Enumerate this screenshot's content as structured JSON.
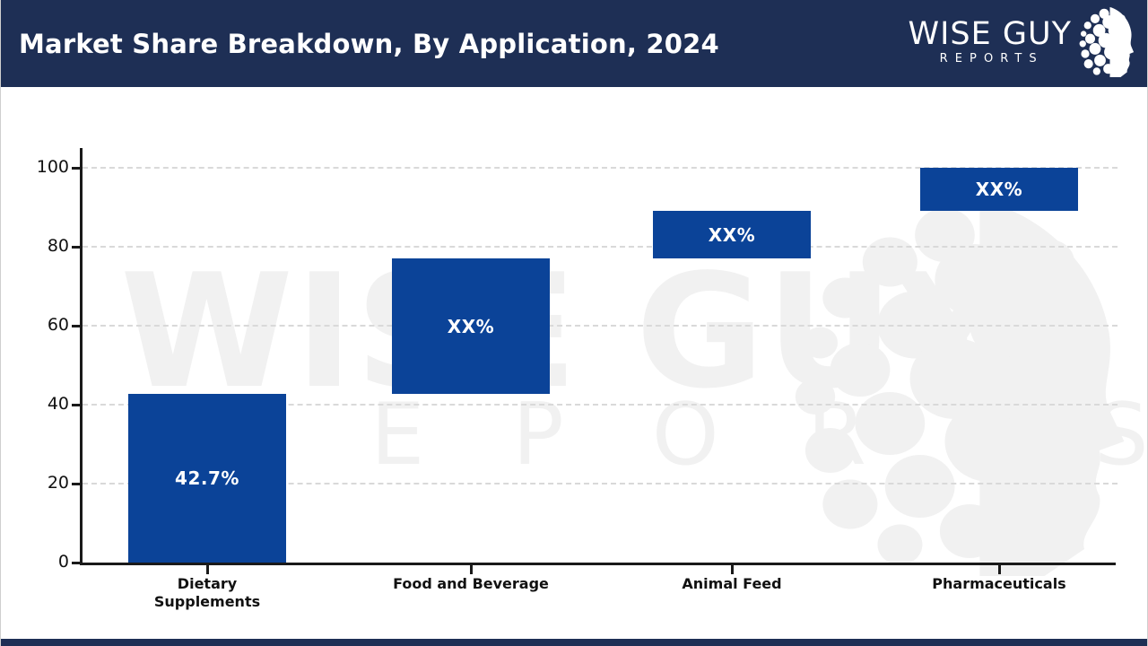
{
  "header": {
    "title": "Market Share Breakdown, By Application, 2024",
    "logo": {
      "name": "WISE GUY",
      "subname": "REPORTS"
    }
  },
  "watermark": {
    "line1": "WISE GUY",
    "line2": "R E P O R T S"
  },
  "footer": {},
  "chart_data": {
    "type": "bar",
    "subtype": "floating-waterfall",
    "title": "Market Share Breakdown, By Application, 2024",
    "xlabel": "",
    "ylabel": "",
    "ylim": [
      0,
      105
    ],
    "yticks": [
      0,
      20,
      40,
      60,
      80,
      100
    ],
    "grid": "horizontal-dashed",
    "legend": "none",
    "categories": [
      "Dietary\nSupplements",
      "Food and Beverage",
      "Animal Feed",
      "Pharmaceuticals"
    ],
    "segments": [
      {
        "category": "Dietary Supplements",
        "start": 0,
        "end": 42.7,
        "label": "42.7%"
      },
      {
        "category": "Food and Beverage",
        "start": 42.7,
        "end": 77,
        "label": "XX%"
      },
      {
        "category": "Animal Feed",
        "start": 77,
        "end": 89,
        "label": "XX%"
      },
      {
        "category": "Pharmaceuticals",
        "start": 89,
        "end": 100,
        "label": "XX%"
      }
    ]
  },
  "colors": {
    "header_bg": "#1e2f55",
    "footer_bg": "#1e2f55",
    "bar": "#0b4398",
    "bar_label": "#ffffff",
    "grid": "#d9d9d9",
    "axis": "#1a1a1a",
    "watermark": "#f1f1f1"
  }
}
